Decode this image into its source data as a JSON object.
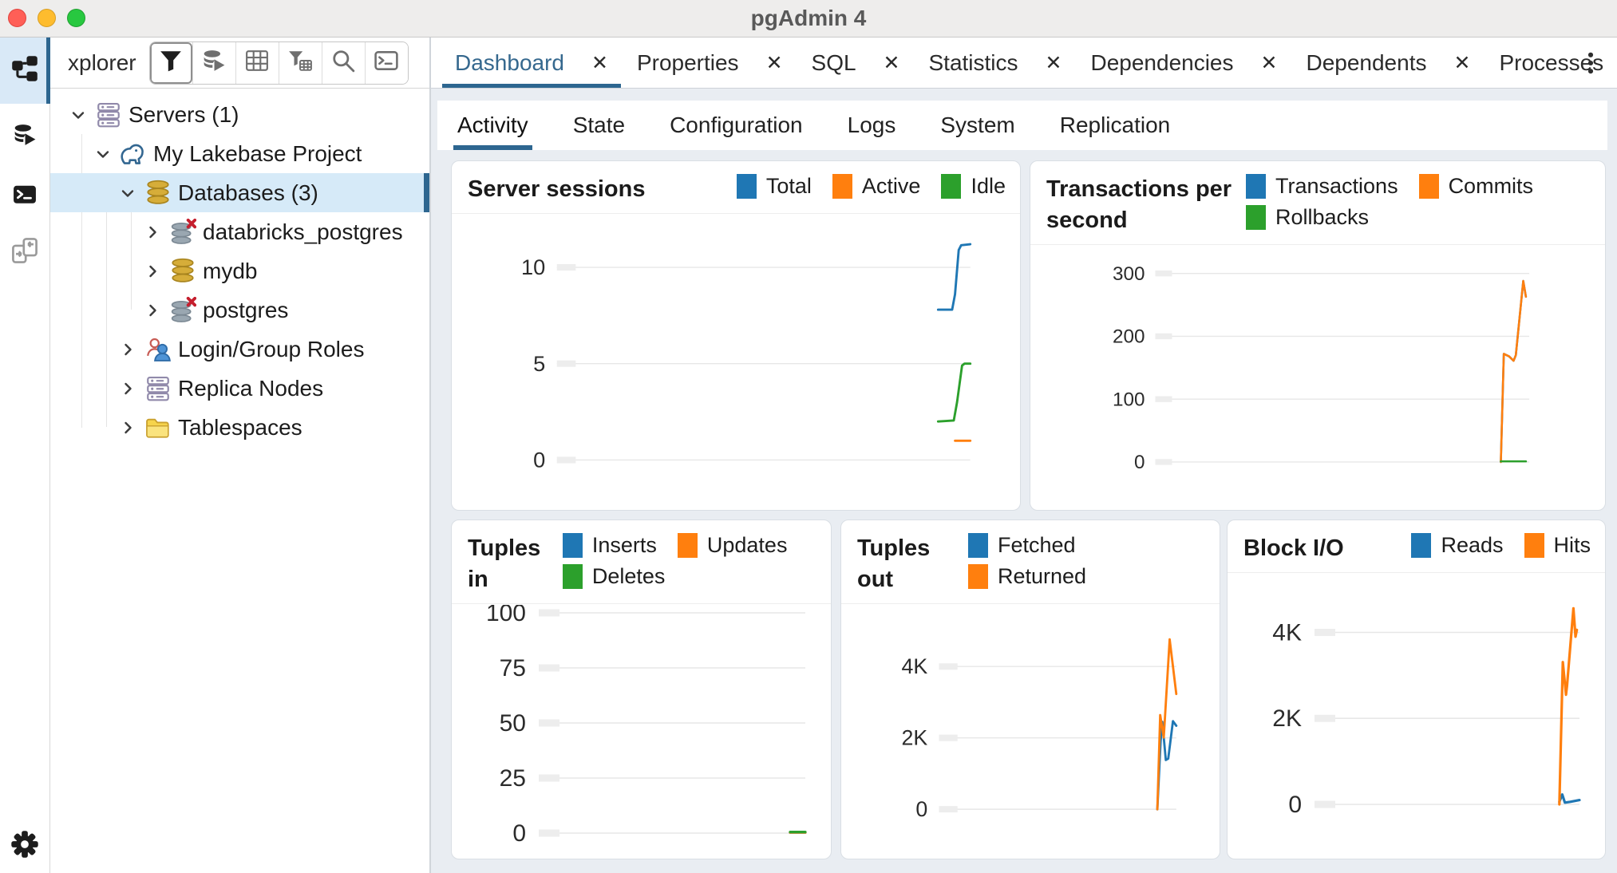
{
  "window": {
    "title": "pgAdmin 4"
  },
  "titlebar_buttons": [
    "close",
    "minimize",
    "zoom"
  ],
  "rail": {
    "items": [
      {
        "name": "object-explorer",
        "icon": "sitemap-icon",
        "active": true
      },
      {
        "name": "query-tool",
        "icon": "database-play-icon",
        "active": false
      },
      {
        "name": "psql-tool",
        "icon": "terminal-icon",
        "active": false
      },
      {
        "name": "schema-diff",
        "icon": "schema-diff-icon",
        "active": false
      }
    ],
    "bottom_item": {
      "name": "preferences",
      "icon": "gear-icon"
    }
  },
  "explorer": {
    "header": {
      "label": "xplorer"
    },
    "toolbar": [
      {
        "name": "filter",
        "icon": "funnel-icon",
        "focused": true
      },
      {
        "name": "connect-database",
        "icon": "database-play-icon",
        "focused": false
      },
      {
        "name": "view-data",
        "icon": "grid-icon",
        "focused": false
      },
      {
        "name": "filtered-rows",
        "icon": "funnel-table-icon",
        "focused": false
      },
      {
        "name": "search-objects",
        "icon": "search-icon",
        "focused": false
      },
      {
        "name": "psql",
        "icon": "terminal-icon",
        "focused": false
      }
    ],
    "tree": [
      {
        "label": "Servers (1)",
        "icon": "servers",
        "level": 0,
        "expanded": true,
        "selected": false
      },
      {
        "label": "My Lakebase Project",
        "icon": "postgres-server",
        "level": 1,
        "expanded": true,
        "selected": false
      },
      {
        "label": "Databases (3)",
        "icon": "database-gold",
        "level": 2,
        "expanded": true,
        "selected": true
      },
      {
        "label": "databricks_postgres",
        "icon": "database-disconnected",
        "level": 3,
        "expanded": false,
        "selected": false
      },
      {
        "label": "mydb",
        "icon": "database-gold",
        "level": 3,
        "expanded": false,
        "selected": false
      },
      {
        "label": "postgres",
        "icon": "database-disconnected",
        "level": 3,
        "expanded": false,
        "selected": false
      },
      {
        "label": "Login/Group Roles",
        "icon": "roles",
        "level": 2,
        "expanded": false,
        "selected": false
      },
      {
        "label": "Replica Nodes",
        "icon": "servers",
        "level": 2,
        "expanded": false,
        "selected": false
      },
      {
        "label": "Tablespaces",
        "icon": "folder",
        "level": 2,
        "expanded": false,
        "selected": false
      }
    ]
  },
  "tabs": [
    {
      "label": "Dashboard",
      "active": true,
      "closable": true
    },
    {
      "label": "Properties",
      "active": false,
      "closable": true
    },
    {
      "label": "SQL",
      "active": false,
      "closable": true
    },
    {
      "label": "Statistics",
      "active": false,
      "closable": true
    },
    {
      "label": "Dependencies",
      "active": false,
      "closable": true
    },
    {
      "label": "Dependents",
      "active": false,
      "closable": true
    },
    {
      "label": "Processes",
      "active": false,
      "closable": true
    }
  ],
  "subtabs": [
    {
      "label": "Activity",
      "active": true
    },
    {
      "label": "State",
      "active": false
    },
    {
      "label": "Configuration",
      "active": false
    },
    {
      "label": "Logs",
      "active": false
    },
    {
      "label": "System",
      "active": false
    },
    {
      "label": "Replication",
      "active": false
    }
  ],
  "icons": {
    "close_glyph": "✕",
    "menu": "kebab-menu-icon"
  },
  "colors": {
    "accent": "#2d6690",
    "active_tab_text": "#35688e",
    "selection_bg": "#d6eaf8",
    "series_blue": "#1f77b4",
    "series_orange": "#ff7f0e",
    "series_green": "#2ca02c",
    "content_bg": "#e9edf2"
  },
  "chart_data": [
    {
      "id": "server-sessions",
      "type": "line",
      "title": "Server sessions",
      "xlabel": "",
      "ylabel": "",
      "x_axis": "time (no tick labels shown, most recent at right)",
      "grid": true,
      "legend_position": "top-right",
      "ylim": [
        0,
        12.4
      ],
      "yticks": [
        {
          "v": 0,
          "label": "0"
        },
        {
          "v": 5,
          "label": "5"
        },
        {
          "v": 10,
          "label": "10"
        }
      ],
      "series": [
        {
          "name": "Total",
          "color": "#1f77b4",
          "points": [
            [
              92.2,
              7.8
            ],
            [
              95.6,
              7.8
            ],
            [
              96.3,
              8.6
            ],
            [
              97.2,
              10.9
            ],
            [
              97.8,
              11.15
            ],
            [
              100,
              11.2
            ]
          ]
        },
        {
          "name": "Active",
          "color": "#ff7f0e",
          "points": [
            [
              96.3,
              1.0
            ],
            [
              100,
              1.0
            ]
          ]
        },
        {
          "name": "Idle",
          "color": "#2ca02c",
          "points": [
            [
              92.2,
              2.0
            ],
            [
              96.0,
              2.05
            ],
            [
              96.8,
              3.0
            ],
            [
              98.0,
              4.9
            ],
            [
              98.6,
              5.0
            ],
            [
              100,
              5.0
            ]
          ]
        }
      ]
    },
    {
      "id": "transactions-per-second",
      "type": "line",
      "title": "Transactions per second",
      "xlabel": "",
      "ylabel": "",
      "x_axis": "time (no tick labels shown, most recent at right)",
      "grid": true,
      "legend_position": "top-right",
      "ylim": [
        0,
        335
      ],
      "yticks": [
        {
          "v": 0,
          "label": "0"
        },
        {
          "v": 100,
          "label": "100"
        },
        {
          "v": 200,
          "label": "200"
        },
        {
          "v": 300,
          "label": "300"
        }
      ],
      "series": [
        {
          "name": "Transactions",
          "color": "#1f77b4",
          "points": [
            [
              92.4,
              0
            ],
            [
              93.2,
              172
            ],
            [
              94.6,
              168
            ],
            [
              95.8,
              161
            ],
            [
              96.4,
              170
            ],
            [
              98.4,
              288
            ],
            [
              99.1,
              263
            ]
          ]
        },
        {
          "name": "Commits",
          "color": "#ff7f0e",
          "points": [
            [
              92.4,
              0
            ],
            [
              93.2,
              172
            ],
            [
              94.6,
              168
            ],
            [
              95.8,
              161
            ],
            [
              96.4,
              170
            ],
            [
              98.4,
              288
            ],
            [
              99.1,
              263
            ]
          ]
        },
        {
          "name": "Rollbacks",
          "color": "#2ca02c",
          "points": [
            [
              92.4,
              1
            ],
            [
              99.1,
              1
            ]
          ]
        }
      ]
    },
    {
      "id": "tuples-in",
      "type": "line",
      "title": "Tuples in",
      "xlabel": "",
      "ylabel": "",
      "x_axis": "time (no tick labels shown, most recent at right)",
      "grid": true,
      "legend_position": "top-right",
      "ylim": [
        0,
        100
      ],
      "yticks": [
        {
          "v": 0,
          "label": "0"
        },
        {
          "v": 25,
          "label": "25"
        },
        {
          "v": 50,
          "label": "50"
        },
        {
          "v": 75,
          "label": "75"
        },
        {
          "v": 100,
          "label": "100"
        }
      ],
      "series": [
        {
          "name": "Inserts",
          "color": "#1f77b4",
          "points": [
            [
              94.3,
              0.3
            ],
            [
              100,
              0.3
            ]
          ]
        },
        {
          "name": "Updates",
          "color": "#ff7f0e",
          "points": [
            [
              94.3,
              0.3
            ],
            [
              100,
              0.3
            ]
          ]
        },
        {
          "name": "Deletes",
          "color": "#2ca02c",
          "points": [
            [
              94.3,
              0.5
            ],
            [
              100,
              0.5
            ]
          ]
        }
      ]
    },
    {
      "id": "tuples-out",
      "type": "line",
      "title": "Tuples out",
      "xlabel": "",
      "ylabel": "",
      "x_axis": "time (no tick labels shown, most recent at right)",
      "grid": true,
      "legend_position": "top-right",
      "ylim": [
        0,
        5150
      ],
      "yticks": [
        {
          "v": 0,
          "label": "0"
        },
        {
          "v": 2000,
          "label": "2K"
        },
        {
          "v": 4000,
          "label": "4K"
        }
      ],
      "series": [
        {
          "name": "Fetched",
          "color": "#1f77b4",
          "points": [
            [
              92.0,
              0
            ],
            [
              93.4,
              1900
            ],
            [
              94.1,
              2450
            ],
            [
              95.6,
              1380
            ],
            [
              96.6,
              1420
            ],
            [
              98.6,
              2470
            ],
            [
              100,
              2340
            ]
          ]
        },
        {
          "name": "Returned",
          "color": "#ff7f0e",
          "points": [
            [
              92.0,
              0
            ],
            [
              93.2,
              2640
            ],
            [
              94.7,
              2010
            ],
            [
              97.2,
              4760
            ],
            [
              100,
              3230
            ]
          ]
        }
      ]
    },
    {
      "id": "block-io",
      "type": "line",
      "title": "Block I/O",
      "xlabel": "",
      "ylabel": "",
      "x_axis": "time (no tick labels shown, most recent at right)",
      "grid": true,
      "legend_position": "top-right",
      "ylim": [
        0,
        4900
      ],
      "yticks": [
        {
          "v": 0,
          "label": "0"
        },
        {
          "v": 2000,
          "label": "2K"
        },
        {
          "v": 4000,
          "label": "4K"
        }
      ],
      "series": [
        {
          "name": "Reads",
          "color": "#1f77b4",
          "points": [
            [
              92.4,
              60
            ],
            [
              93.5,
              230
            ],
            [
              94.5,
              40
            ],
            [
              96.5,
              60
            ],
            [
              100,
              100
            ]
          ]
        },
        {
          "name": "Hits",
          "color": "#ff7f0e",
          "points": [
            [
              92.4,
              0
            ],
            [
              93.7,
              3310
            ],
            [
              94.9,
              2550
            ],
            [
              95.3,
              2760
            ],
            [
              97.7,
              4560
            ],
            [
              98.5,
              3900
            ],
            [
              99.0,
              4060
            ]
          ]
        }
      ]
    }
  ]
}
